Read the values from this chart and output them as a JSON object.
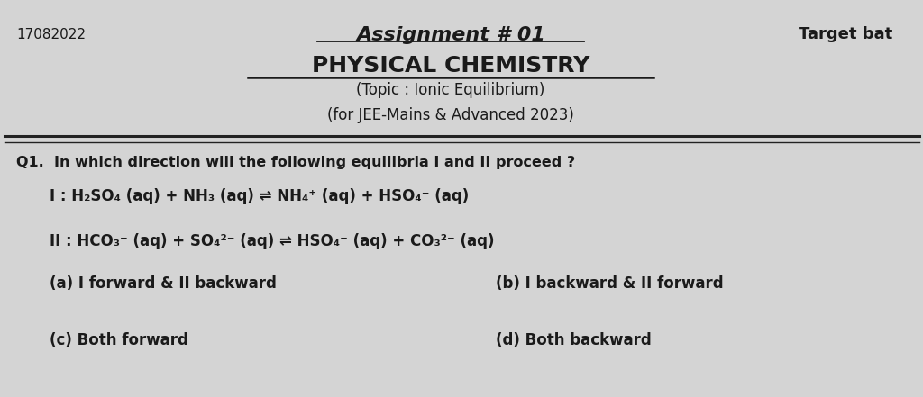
{
  "bg_color": "#d4d4d4",
  "text_color": "#1a1a1a",
  "date_text": "17082022",
  "title_center": "Assignment # 01",
  "title_right": "Target bat",
  "subtitle_bold": "PHYSICAL CHEMISTRY",
  "subtitle2": "(Topic : Ionic Equilibrium)",
  "subtitle3": "(for JEE-Mains & Advanced 2023)",
  "q1_text": "Q1.  In which direction will the following equilibria I and II proceed ?",
  "eq1_label": "I : H₂SO₄ (aq) + NH₃ (aq) ⇌ NH₄⁺ (aq) + HSO₄⁻ (aq)",
  "eq2_label": "II : HCO₃⁻ (aq) + SO₄²⁻ (aq) ⇌ HSO₄⁻ (aq) + CO₃²⁻ (aq)",
  "opt_a": "(a) I forward & II backward",
  "opt_b": "(b) I backward & II forward",
  "opt_c": "(c) Both forward",
  "opt_d": "(d) Both backward"
}
